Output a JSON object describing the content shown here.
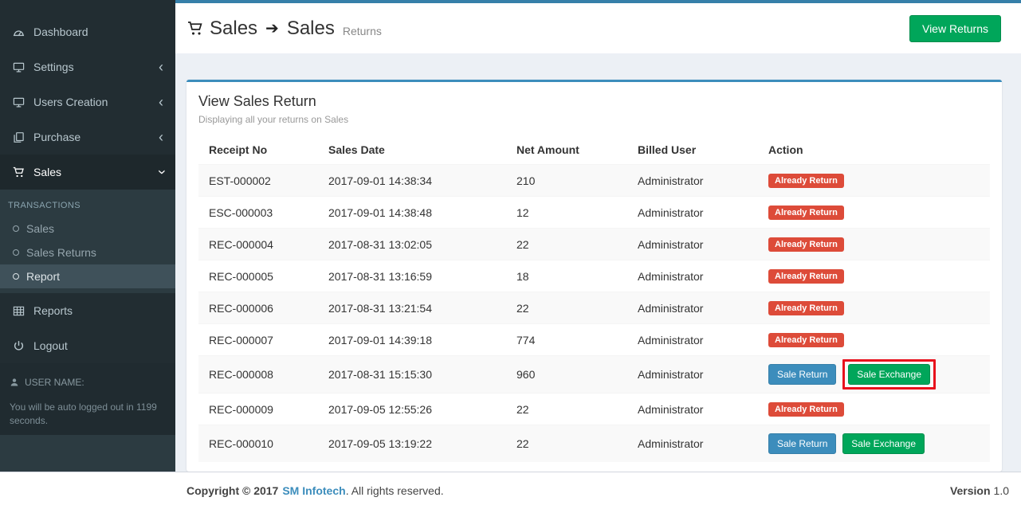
{
  "colors": {
    "primary": "#3c8dbc",
    "success": "#00a65a",
    "danger": "#dd4b39",
    "sidebar_bg": "#222d32",
    "annotation_red": "#e8111c"
  },
  "sidebar": {
    "items_top": [
      {
        "label": "Dashboard",
        "icon": "dashboard",
        "chevron": ""
      },
      {
        "label": "Settings",
        "icon": "desktop",
        "chevron": "left"
      },
      {
        "label": "Users Creation",
        "icon": "desktop",
        "chevron": "left"
      },
      {
        "label": "Purchase",
        "icon": "copy",
        "chevron": "left"
      },
      {
        "label": "Sales",
        "icon": "cart",
        "chevron": "down",
        "active": true
      }
    ],
    "submenu_header": "TRANSACTIONS",
    "submenu": [
      {
        "label": "Sales"
      },
      {
        "label": "Sales Returns"
      },
      {
        "label": "Report",
        "highlight": true
      }
    ],
    "items_bottom": [
      {
        "label": "Reports",
        "icon": "table",
        "chevron": ""
      },
      {
        "label": "Logout",
        "icon": "power",
        "chevron": ""
      }
    ],
    "user_label": "USER NAME:",
    "auto_logout_note": "You will be auto logged out in 1199 seconds."
  },
  "header": {
    "section": "Sales",
    "page": "Sales",
    "page_sub": "Returns",
    "action_button": "View Returns"
  },
  "panel": {
    "title": "View Sales Return",
    "subtitle": "Displaying all your returns on Sales"
  },
  "table": {
    "columns": [
      "Receipt No",
      "Sales Date",
      "Net Amount",
      "Billed User",
      "Action"
    ],
    "rows": [
      {
        "receipt_no": "EST-000002",
        "sales_date": "2017-09-01 14:38:34",
        "net_amount": "210",
        "billed_user": "Administrator",
        "actions": [
          "already_return"
        ]
      },
      {
        "receipt_no": "ESC-000003",
        "sales_date": "2017-09-01 14:38:48",
        "net_amount": "12",
        "billed_user": "Administrator",
        "actions": [
          "already_return"
        ]
      },
      {
        "receipt_no": "REC-000004",
        "sales_date": "2017-08-31 13:02:05",
        "net_amount": "22",
        "billed_user": "Administrator",
        "actions": [
          "already_return"
        ]
      },
      {
        "receipt_no": "REC-000005",
        "sales_date": "2017-08-31 13:16:59",
        "net_amount": "18",
        "billed_user": "Administrator",
        "actions": [
          "already_return"
        ]
      },
      {
        "receipt_no": "REC-000006",
        "sales_date": "2017-08-31 13:21:54",
        "net_amount": "22",
        "billed_user": "Administrator",
        "actions": [
          "already_return"
        ]
      },
      {
        "receipt_no": "REC-000007",
        "sales_date": "2017-09-01 14:39:18",
        "net_amount": "774",
        "billed_user": "Administrator",
        "actions": [
          "already_return"
        ]
      },
      {
        "receipt_no": "REC-000008",
        "sales_date": "2017-08-31 15:15:30",
        "net_amount": "960",
        "billed_user": "Administrator",
        "actions": [
          "sale_return",
          "sale_exchange"
        ],
        "highlight_exchange": true
      },
      {
        "receipt_no": "REC-000009",
        "sales_date": "2017-09-05 12:55:26",
        "net_amount": "22",
        "billed_user": "Administrator",
        "actions": [
          "already_return"
        ]
      },
      {
        "receipt_no": "REC-000010",
        "sales_date": "2017-09-05 13:19:22",
        "net_amount": "22",
        "billed_user": "Administrator",
        "actions": [
          "sale_return",
          "sale_exchange"
        ]
      }
    ]
  },
  "action_labels": {
    "already_return": "Already Return",
    "sale_return": "Sale Return",
    "sale_exchange": "Sale Exchange"
  },
  "footer": {
    "copyright_bold": "Copyright © 2017",
    "company": "SM Infotech",
    "copyright_rest": ". All rights reserved.",
    "version_label": "Version",
    "version_value": "1.0"
  }
}
